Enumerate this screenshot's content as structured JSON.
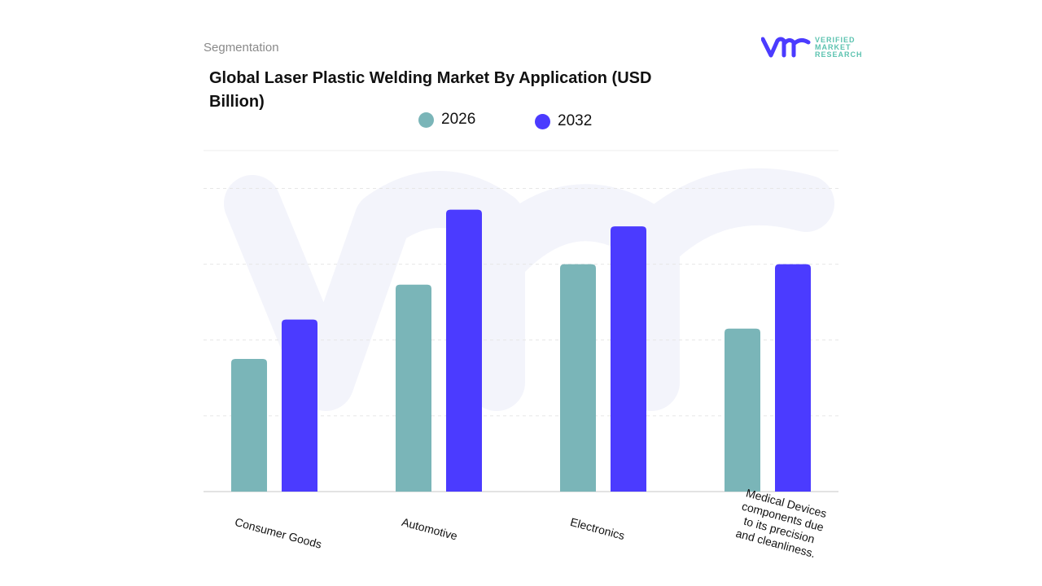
{
  "header": {
    "segment_label": "Segmentation",
    "title": "Global Laser Plastic Welding Market By Application (USD Billion)"
  },
  "logo": {
    "mark": "vmr",
    "text_line1": "VERIFIED",
    "text_line2": "MARKET",
    "text_line3": "RESEARCH"
  },
  "chart_data": {
    "type": "bar",
    "title": "Global Laser Plastic Welding Market By Application (USD Billion)",
    "categories": [
      "Consumer Goods",
      "Automotive",
      "Electronics",
      "Medical Devices components due to its precision and cleanliness."
    ],
    "series": [
      {
        "name": "2026",
        "color": "#7ab5b8",
        "values": [
          1.75,
          2.73,
          3.0,
          2.15
        ]
      },
      {
        "name": "2032",
        "color": "#4b3bff",
        "values": [
          2.27,
          3.72,
          3.5,
          3.0
        ]
      }
    ],
    "ylim": [
      0,
      4.5
    ],
    "grid": true,
    "legend_placement": "top-center",
    "xlabel": "",
    "ylabel": ""
  }
}
